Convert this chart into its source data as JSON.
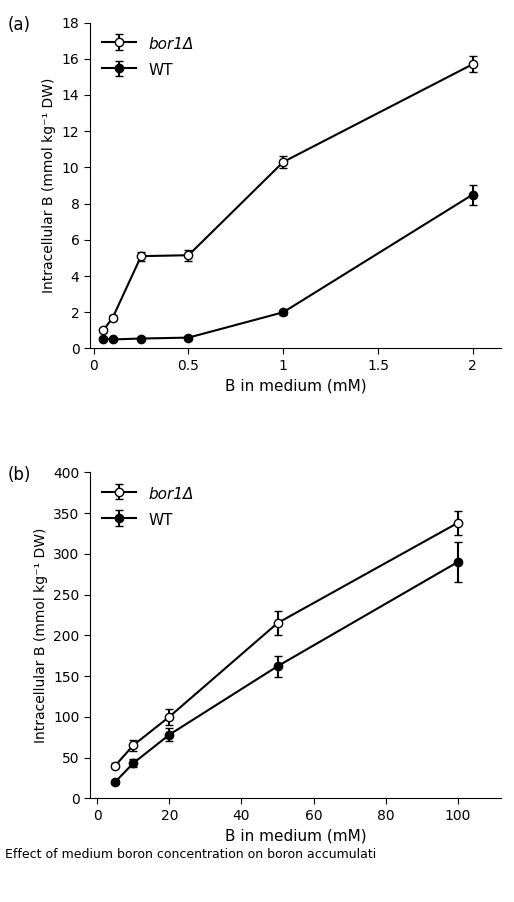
{
  "panel_a": {
    "bor1_x": [
      0.05,
      0.1,
      0.25,
      0.5,
      1.0,
      2.0
    ],
    "bor1_y": [
      1.0,
      1.7,
      5.1,
      5.15,
      10.3,
      15.7
    ],
    "bor1_yerr": [
      0.1,
      0.15,
      0.25,
      0.3,
      0.35,
      0.45
    ],
    "wt_x": [
      0.05,
      0.1,
      0.25,
      0.5,
      1.0,
      2.0
    ],
    "wt_y": [
      0.55,
      0.5,
      0.55,
      0.6,
      2.0,
      8.5
    ],
    "wt_yerr": [
      0.08,
      0.08,
      0.08,
      0.08,
      0.15,
      0.55
    ],
    "xlim": [
      -0.02,
      2.15
    ],
    "ylim": [
      0,
      18
    ],
    "xticks": [
      0,
      0.5,
      1.0,
      1.5,
      2.0
    ],
    "xticklabels": [
      "0",
      "0.5",
      "1",
      "1.5",
      "2"
    ],
    "yticks": [
      0,
      2,
      4,
      6,
      8,
      10,
      12,
      14,
      16,
      18
    ],
    "xlabel": "B in medium (mM)",
    "ylabel": "Intracellular B (mmol kg⁻¹ DW)",
    "panel_label": "(a)"
  },
  "panel_b": {
    "bor1_x": [
      5,
      10,
      20,
      50,
      100
    ],
    "bor1_y": [
      40,
      65,
      100,
      215,
      338
    ],
    "bor1_yerr": [
      3,
      7,
      10,
      15,
      15
    ],
    "wt_x": [
      5,
      10,
      20,
      50,
      100
    ],
    "wt_y": [
      20,
      43,
      78,
      162,
      290
    ],
    "wt_yerr": [
      3,
      5,
      8,
      13,
      25
    ],
    "xlim": [
      -2,
      112
    ],
    "ylim": [
      0,
      400
    ],
    "xticks": [
      0,
      20,
      40,
      60,
      80,
      100
    ],
    "xticklabels": [
      "0",
      "20",
      "40",
      "60",
      "80",
      "100"
    ],
    "yticks": [
      0,
      50,
      100,
      150,
      200,
      250,
      300,
      350,
      400
    ],
    "xlabel": "B in medium (mM)",
    "ylabel": "Intracellular B (mmol kg⁻¹ DW)",
    "panel_label": "(b)"
  },
  "legend_bor1": "bor1Δ",
  "legend_wt": "WT",
  "line_color": "#000000",
  "marker": "o",
  "bor1_markerfacecolor": "white",
  "wt_markerfacecolor": "black",
  "markersize": 6,
  "linewidth": 1.5,
  "capsize": 3,
  "caption": "Effect of medium boron concentration on boron accumulati"
}
